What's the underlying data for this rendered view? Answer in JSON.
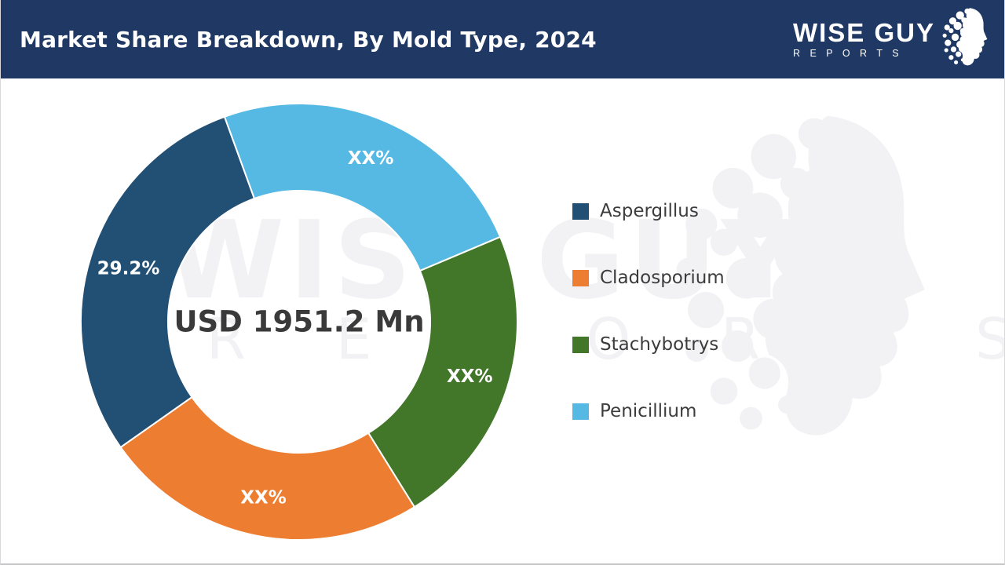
{
  "header": {
    "title": "Market Share Breakdown, By Mold Type, 2024",
    "logo": {
      "line1": "WISE GUY",
      "line2": "R E P O R T S"
    }
  },
  "watermark": {
    "line1": "WISE GUY",
    "line2": "R E P O R T S"
  },
  "chart_data": {
    "type": "pie",
    "subtype": "donut",
    "title": "Market Share Breakdown, By Mold Type, 2024",
    "center_label": "USD 1951.2 Mn",
    "units": "percent",
    "start_angle_deg": -20,
    "direction": "clockwise",
    "inner_radius_ratio": 0.6,
    "legend_position": "right",
    "slices": [
      {
        "name": "Penicillium",
        "value": 24.2,
        "display_label": "XX%",
        "color": "#56B9E4"
      },
      {
        "name": "Stachybotrys",
        "value": 22.5,
        "display_label": "XX%",
        "color": "#42772A"
      },
      {
        "name": "Cladosporium",
        "value": 24.1,
        "display_label": "XX%",
        "color": "#ED7D31"
      },
      {
        "name": "Aspergillus",
        "value": 29.2,
        "display_label": "29.2%",
        "color": "#224F74"
      }
    ]
  },
  "legend": {
    "items": [
      {
        "label": "Aspergillus",
        "color": "#224F74"
      },
      {
        "label": "Cladosporium",
        "color": "#ED7D31"
      },
      {
        "label": "Stachybotrys",
        "color": "#42772A"
      },
      {
        "label": "Penicillium",
        "color": "#56B9E4"
      }
    ]
  }
}
